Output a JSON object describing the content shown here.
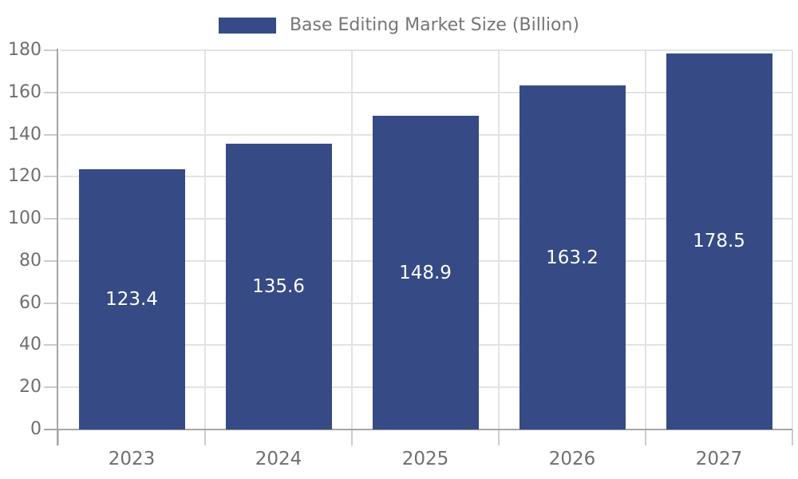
{
  "chart_data": {
    "type": "bar",
    "title": "Base Editing Market Size (Billion)",
    "legend": {
      "entries": [
        "Base Editing Market Size (Billion)"
      ],
      "position": "top-center"
    },
    "categories": [
      "2023",
      "2024",
      "2025",
      "2026",
      "2027"
    ],
    "values": [
      123.4,
      135.6,
      148.9,
      163.2,
      178.5
    ],
    "value_labels": [
      "123.4",
      "135.6",
      "148.9",
      "163.2",
      "178.5"
    ],
    "xlabel": "",
    "ylabel": "",
    "ylim": [
      0,
      180
    ],
    "yticks": [
      0,
      20,
      40,
      60,
      80,
      100,
      120,
      140,
      160,
      180
    ],
    "ytick_labels": [
      "0",
      "20",
      "40",
      "60",
      "80",
      "100",
      "120",
      "140",
      "160",
      "180"
    ],
    "grid": "both",
    "colors": {
      "bar": "#364A85",
      "value_label": "#FFFFFF",
      "tick_label": "#6F6F6F",
      "title_text": "#757575",
      "gridline": "#E3E3E3",
      "tick_mark": "#CCCCCC",
      "axis_line": "#A5A5A5",
      "background": "#FFFFFF"
    }
  }
}
